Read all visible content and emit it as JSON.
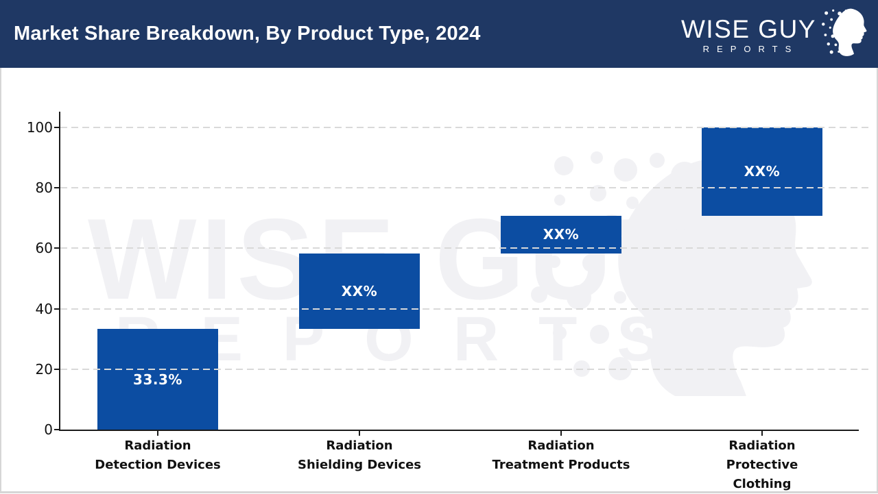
{
  "header": {
    "title": "Market Share Breakdown, By Product Type, 2024",
    "logo": {
      "wordmark": "WISE GUY",
      "subtext": "REPORTS"
    }
  },
  "watermark": {
    "wordmark": "WISE GUY",
    "subtext": "REPORTS"
  },
  "colors": {
    "header_background": "#1f3864",
    "bar_blue": "#0c4da2",
    "grid_gray": "#d9d9d9",
    "watermark_gray": "#f1f1f4",
    "text_black": "#111111",
    "text_white": "#ffffff"
  },
  "chart_data": {
    "type": "bar",
    "subtype": "waterfall",
    "title": "Market Share Breakdown, By Product Type, 2024",
    "categories": [
      [
        "Radiation",
        "Detection Devices"
      ],
      [
        "Radiation",
        "Shielding Devices"
      ],
      [
        "Radiation",
        "Treatment Products"
      ],
      [
        "Radiation",
        "Protective",
        "Clothing"
      ]
    ],
    "segments": [
      {
        "start": 0,
        "end": 33.3,
        "label": "33.3%"
      },
      {
        "start": 33.3,
        "end": 58.3,
        "label": "XX%"
      },
      {
        "start": 58.3,
        "end": 70.8,
        "label": "XX%"
      },
      {
        "start": 70.8,
        "end": 100,
        "label": "XX%"
      }
    ],
    "yticks": [
      0,
      20,
      40,
      60,
      80,
      100
    ],
    "ylim": [
      0,
      105
    ],
    "grid": "horizontal dashed, drawn over bars",
    "legend": "none",
    "bar_color": "#0c4da2",
    "bar_label_color": "#ffffff"
  }
}
